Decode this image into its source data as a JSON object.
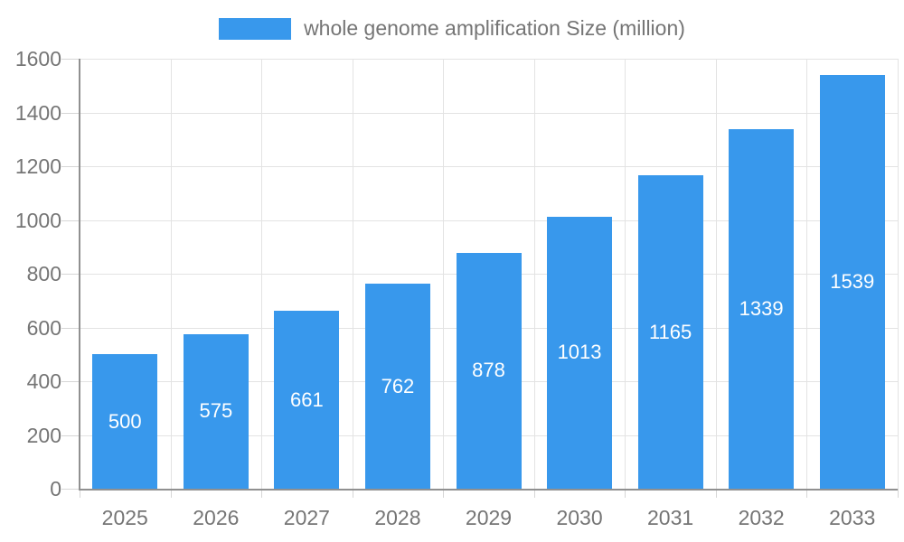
{
  "legend": {
    "label": "whole genome amplification Size (million)",
    "swatch_color": "#3898EC"
  },
  "chart_data": {
    "type": "bar",
    "title": "whole genome amplification Size (million)",
    "categories": [
      "2025",
      "2026",
      "2027",
      "2028",
      "2029",
      "2030",
      "2031",
      "2032",
      "2033"
    ],
    "values": [
      500,
      575,
      661,
      762,
      878,
      1013,
      1165,
      1339,
      1539
    ],
    "xlabel": "",
    "ylabel": "",
    "ylim": [
      0,
      1600
    ],
    "yticks": [
      0,
      200,
      400,
      600,
      800,
      1000,
      1200,
      1400,
      1600
    ],
    "grid": true,
    "legend_position": "top",
    "bar_color": "#3898EC",
    "value_label_color": "#ffffff",
    "axis_text_color": "#757575",
    "axis_line_color": "#909090",
    "grid_color": "#e3e3e3",
    "tick_color": "#d6d6d6"
  }
}
